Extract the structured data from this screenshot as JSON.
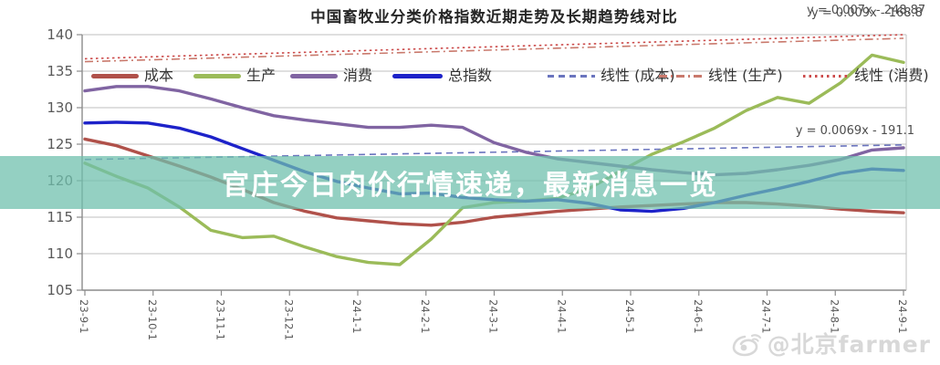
{
  "title": "中国畜牧业分类价格指数近期走势及长期趋势线对比",
  "banner": {
    "text": "官庄今日肉价行情速递，最新消息一览",
    "bg_color": "#6FBFAD",
    "text_color": "#FFFFFF"
  },
  "watermark": {
    "icon": "weibo-eye-icon",
    "text": "@北京farmer",
    "color": "#D4D4D4"
  },
  "equations": {
    "top_overlap_1": "y = 0.007x - 248.87",
    "top_overlap_2": "y = 0.009x - 168.8",
    "mid": "y = 0.0069x - 191.1"
  },
  "chart_data": {
    "type": "line",
    "title": "中国畜牧业分类价格指数近期走势及长期趋势线对比",
    "ylim": [
      105,
      140
    ],
    "ytick_step": 5,
    "y_ticks": [
      140,
      135,
      130,
      125,
      120,
      115,
      110,
      105
    ],
    "x_labels": [
      "23-9-1",
      "23-10-1",
      "23-11-1",
      "23-12-1",
      "24-1-1",
      "24-2-1",
      "24-3-1",
      "24-4-1",
      "24-5-1",
      "24-6-1",
      "24-7-1",
      "24-8-1",
      "24-9-1"
    ],
    "grid": true,
    "legend_position": "top",
    "axis_text_color": "#595959",
    "grid_color": "#BFBFBF",
    "series": [
      {
        "name": "成本",
        "color": "#B0514A",
        "values": [
          125.7,
          124.8,
          123.4,
          122.0,
          120.5,
          118.8,
          117.0,
          115.8,
          114.9,
          114.5,
          114.1,
          113.9,
          114.3,
          115.0,
          115.4,
          115.8,
          116.1,
          116.4,
          116.6,
          116.8,
          117.0,
          117.0,
          116.8,
          116.5,
          116.1,
          115.8,
          115.6
        ]
      },
      {
        "name": "生产",
        "color": "#9BBB59",
        "values": [
          122.4,
          120.6,
          119.0,
          116.4,
          113.2,
          112.2,
          112.4,
          110.9,
          109.6,
          108.8,
          108.5,
          112.0,
          116.3,
          117.0,
          117.2,
          117.6,
          118.9,
          121.3,
          123.6,
          125.3,
          127.2,
          129.6,
          131.4,
          130.6,
          133.4,
          137.2,
          136.2
        ]
      },
      {
        "name": "消费",
        "color": "#8064A2",
        "values": [
          132.3,
          132.9,
          132.9,
          132.3,
          131.2,
          130.0,
          128.9,
          128.3,
          127.8,
          127.3,
          127.3,
          127.6,
          127.3,
          125.2,
          123.9,
          123.0,
          122.5,
          122.0,
          121.5,
          121.1,
          120.8,
          121.0,
          121.5,
          122.1,
          122.9,
          124.2,
          124.5
        ]
      },
      {
        "name": "总指数",
        "color": "#1D22C9",
        "values": [
          127.9,
          128.0,
          127.9,
          127.2,
          126.0,
          124.4,
          122.8,
          121.2,
          119.9,
          119.0,
          118.2,
          118.3,
          117.7,
          117.4,
          117.2,
          117.4,
          116.9,
          116.0,
          115.8,
          116.2,
          117.0,
          118.0,
          118.9,
          119.9,
          121.0,
          121.6,
          121.4
        ]
      }
    ],
    "trendlines": [
      {
        "name": "线性 (成本)",
        "color": "#6A74BE",
        "style": "dashed",
        "start": 122.9,
        "end": 124.9
      },
      {
        "name": "线性 (生产)",
        "color": "#C9796C",
        "style": "dashdot",
        "start": 136.3,
        "end": 139.5
      },
      {
        "name": "线性 (消费)",
        "color": "#CC4B4B",
        "style": "dotted",
        "start": 136.7,
        "end": 140.0
      }
    ]
  }
}
